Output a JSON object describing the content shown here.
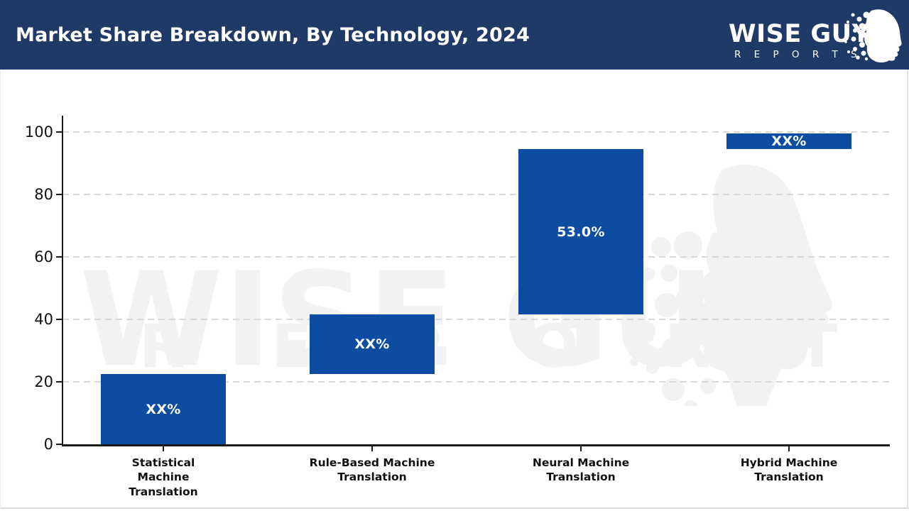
{
  "header": {
    "title": "Market Share Breakdown, By Technology, 2024",
    "logo": {
      "line1": "WISE GUY",
      "line2": "R E P O R T S"
    }
  },
  "watermark": {
    "line1": "WISE GU",
    "line2": "R E P O R T S"
  },
  "colors": {
    "header_bg": "#1f3a66",
    "bar_blue": "#0c4da2",
    "gridline": "#d9d9d9",
    "axis": "#1a1a1a",
    "watermark_gray": "#f1f2f4",
    "bar_label_text": "#ffffff"
  },
  "chart_data": {
    "type": "bar",
    "variant": "floating-waterfall",
    "title": "Market Share Breakdown, By Technology, 2024",
    "categories": [
      "Statistical Machine Translation",
      "Rule-Based Machine Translation",
      "Neural Machine Translation",
      "Hybrid Machine Translation"
    ],
    "category_lines": [
      [
        "Statistical",
        "Machine",
        "Translation"
      ],
      [
        "Rule-Based Machine",
        "Translation"
      ],
      [
        "Neural Machine",
        "Translation"
      ],
      [
        "Hybrid Machine",
        "Translation"
      ]
    ],
    "bars": [
      {
        "from": 0,
        "to": 22.5,
        "label": "XX%"
      },
      {
        "from": 22.5,
        "to": 41.5,
        "label": "XX%"
      },
      {
        "from": 41.5,
        "to": 94.5,
        "label": "53.0%"
      },
      {
        "from": 94.5,
        "to": 99.5,
        "label": "XX%"
      }
    ],
    "ylim": [
      0,
      100
    ],
    "yticks": [
      0,
      20,
      40,
      60,
      80,
      100
    ],
    "xlabel": "",
    "ylabel": "",
    "grid": "horizontal-dashed",
    "legend": false
  }
}
